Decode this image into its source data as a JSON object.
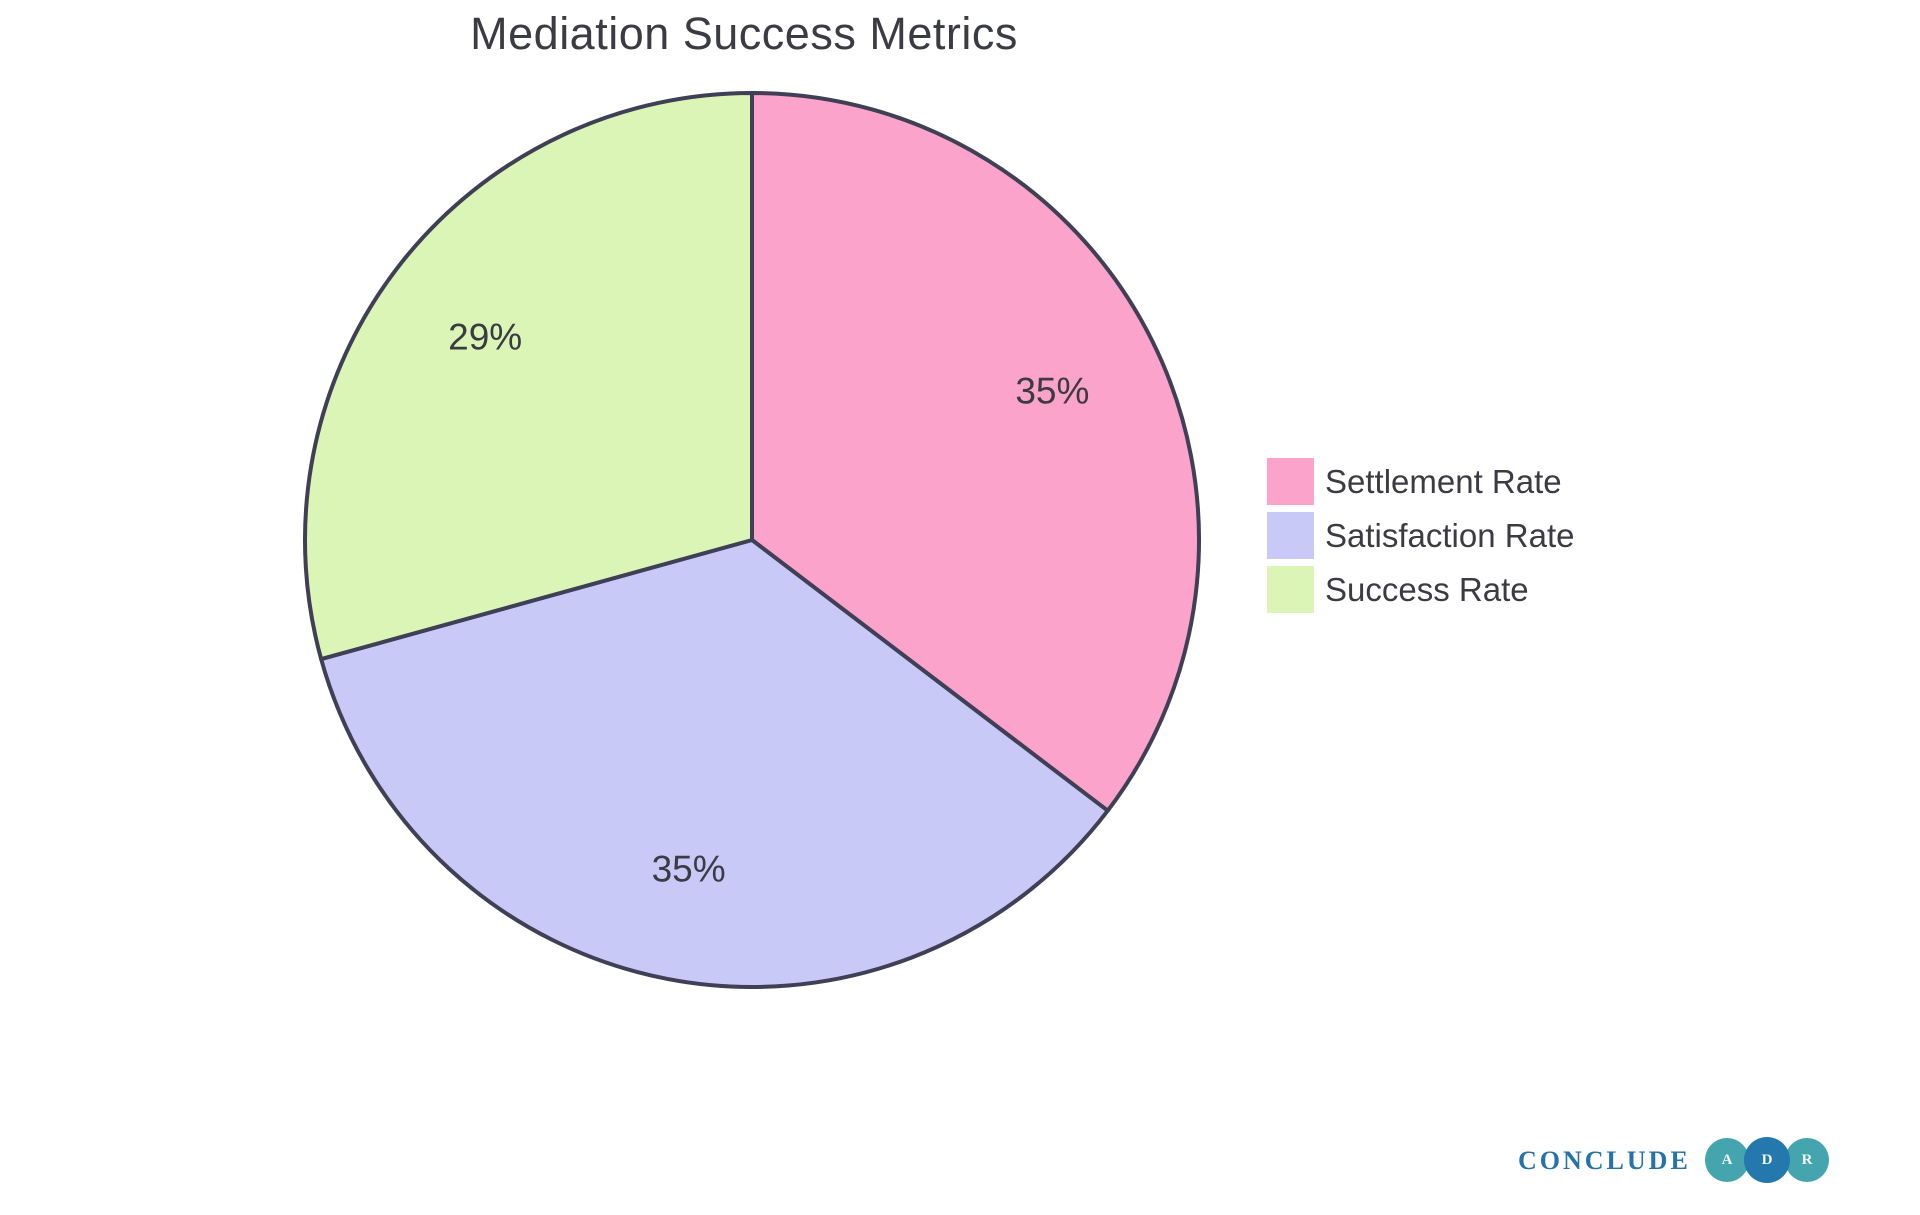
{
  "title": "Mediation Success Metrics",
  "chart_data": {
    "type": "pie",
    "title": "Mediation Success Metrics",
    "slices": [
      {
        "label": "Settlement Rate",
        "value": 35,
        "display": "35%",
        "color": "#FCA3CC"
      },
      {
        "label": "Satisfaction Rate",
        "value": 35,
        "display": "35%",
        "color": "#C9C9F7"
      },
      {
        "label": "Success Rate",
        "value": 29,
        "display": "29%",
        "color": "#DBF5B6"
      }
    ],
    "start_angle_deg": 0,
    "direction": "clockwise",
    "stroke_color": "#3F3F55",
    "label_color": "#3B3B43",
    "legend_position": "right",
    "grid": "off"
  },
  "branding": {
    "wordmark": "CONCLUDE",
    "wordmark_color": "#2573A8",
    "badge_letters": [
      "A",
      "D",
      "R"
    ],
    "badge_colors": [
      "#44A5AE",
      "#2478AD",
      "#44A5AE"
    ],
    "badge_letter_color": "#F2F7F7"
  }
}
